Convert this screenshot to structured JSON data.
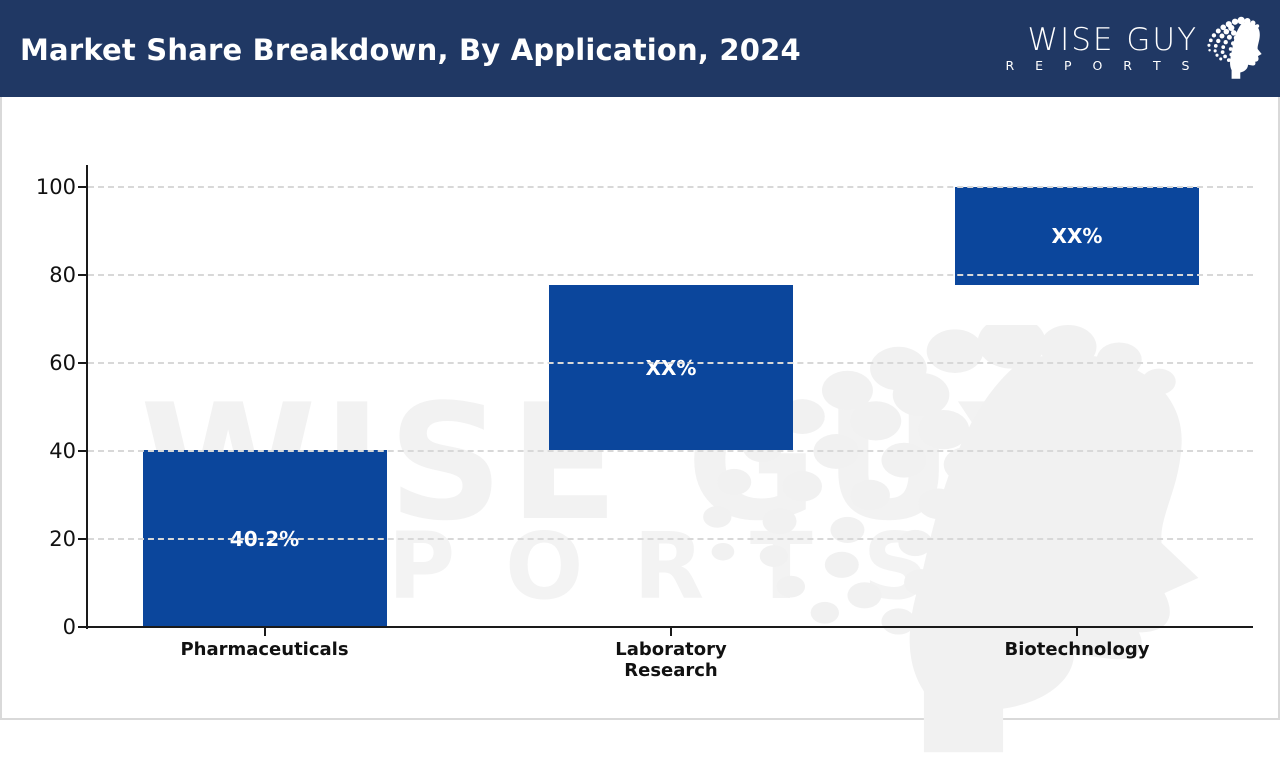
{
  "header": {
    "title": "Market Share Breakdown, By Application, 2024",
    "logo": {
      "line1": "WISE GUY",
      "line2": "R E P O R T S",
      "icon": "dotted-head-profile"
    }
  },
  "watermark": {
    "line1": "WISE GUY",
    "line2": "REPORTS"
  },
  "chart_data": {
    "type": "bar",
    "subtype": "waterfall-segments",
    "title": "Market Share Breakdown, By Application, 2024",
    "categories": [
      "Pharmaceuticals",
      "Laboratory\nResearch",
      "Biotechnology"
    ],
    "bars": [
      {
        "category": "Pharmaceuticals",
        "start": 0,
        "end": 40.2,
        "value": 40.2,
        "label": "40.2%"
      },
      {
        "category": "Laboratory\nResearch",
        "start": 40.2,
        "end": 77.7,
        "value": 37.5,
        "label": "XX%"
      },
      {
        "category": "Biotechnology",
        "start": 77.7,
        "end": 100,
        "value": 22.3,
        "label": "XX%"
      }
    ],
    "yticks": [
      0,
      20,
      40,
      60,
      80,
      100
    ],
    "ylim": [
      0,
      105
    ],
    "xlabel": "",
    "ylabel": "",
    "grid": "horizontal-dashed-over-bars",
    "legend": "none"
  },
  "colors": {
    "header_bg": "#203864",
    "bar_blue": "#0b469c",
    "grid_gray": "#d8d8d8",
    "axis_dark": "#1a1a1a",
    "watermark_gray": "#f2f2f2",
    "bar_label_text": "#ffffff",
    "frame_border": "#d9d9d9"
  }
}
